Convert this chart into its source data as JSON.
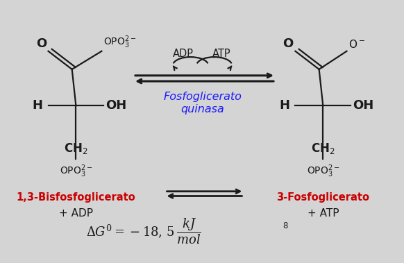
{
  "bg_color": "#d4d4d4",
  "enzyme_color": "#1a1aff",
  "label_red_color": "#cc0000",
  "text_black": "#1a1a1a",
  "figsize": [
    5.82,
    3.79
  ],
  "dpi": 100,
  "left_label1": "1,3-Bisfosfoglicerato",
  "left_label2": "+ ADP",
  "right_label1": "3-Fosfoglicerato",
  "right_label2": "+ ATP",
  "enzyme_label1": "Fosfoglicerato",
  "enzyme_label2": "quinasa",
  "adp_label": "ADP",
  "atp_label": "ATP"
}
